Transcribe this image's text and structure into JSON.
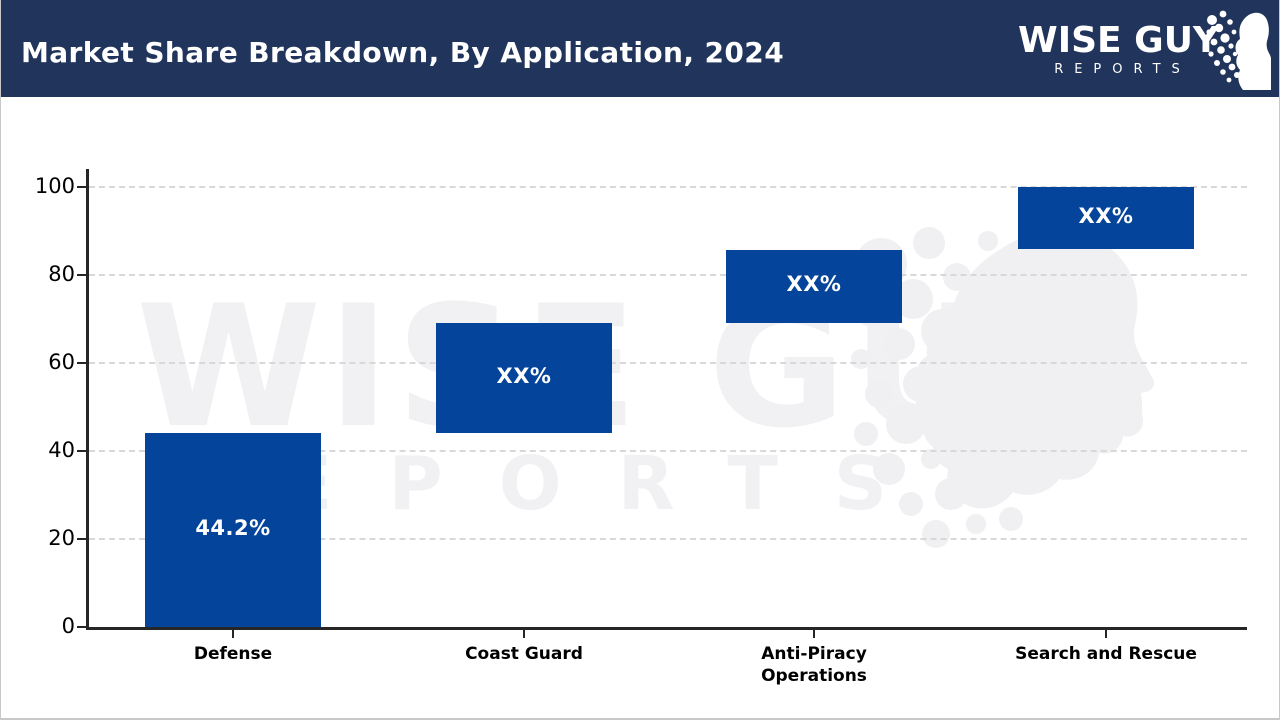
{
  "header": {
    "title": "Market Share Breakdown, By Application, 2024",
    "logo": {
      "line1": "WISE GUY",
      "line2": "REPORTS"
    },
    "bg_color": "#21345b"
  },
  "watermark": {
    "line1": "WISE GUY",
    "line2": "REPORTS"
  },
  "chart_data": {
    "type": "bar",
    "subtype": "waterfall",
    "title": "Market Share Breakdown, By Application, 2024",
    "categories": [
      "Defense",
      "Coast Guard",
      "Anti-Piracy\nOperations",
      "Search and Rescue"
    ],
    "bars": [
      {
        "category": "Defense",
        "start": 0,
        "end": 44.2,
        "label": "44.2%"
      },
      {
        "category": "Coast Guard",
        "start": 44.2,
        "end": 69.2,
        "label": "XX%"
      },
      {
        "category": "Anti-Piracy\nOperations",
        "start": 69.2,
        "end": 85.6,
        "label": "XX%"
      },
      {
        "category": "Search and Rescue",
        "start": 86,
        "end": 100,
        "label": "XX%"
      }
    ],
    "xlabel": "",
    "ylabel": "",
    "ylim": [
      0,
      100
    ],
    "yticks": [
      0,
      20,
      40,
      60,
      80,
      100
    ],
    "grid": "horizontal-dashed",
    "legend": "none",
    "bar_color": "#05449b",
    "bar_label_color": "#ffffff",
    "axis_color": "#262626",
    "grid_color": "#d8d8d8"
  }
}
